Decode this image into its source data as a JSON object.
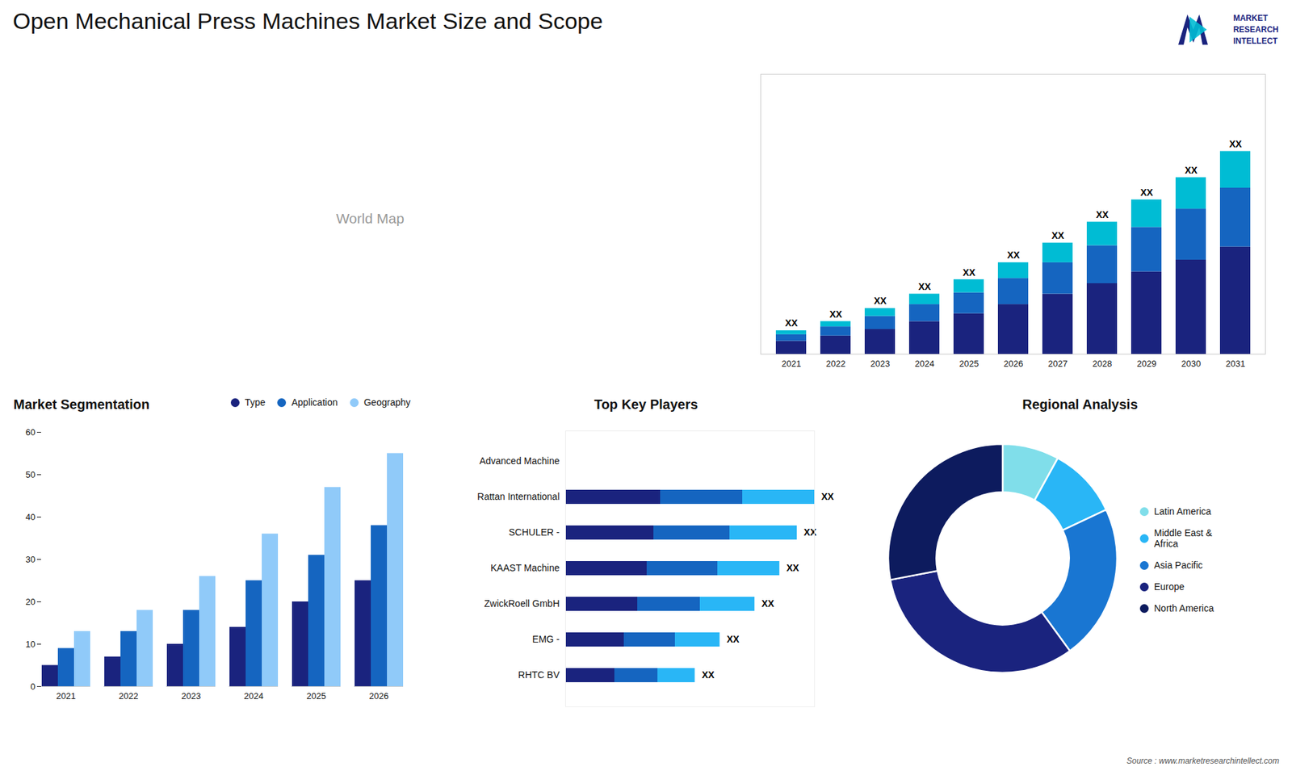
{
  "title": "Open Mechanical Press Machines Market Size and Scope",
  "annotations": [
    "MARKET",
    "RESEARCH",
    "INTELLECT",
    "Source : www.marketresearchintellect.com"
  ],
  "chart_data": [
    {
      "type": "map",
      "annotations": [
        "World Map"
      ]
    },
    {
      "type": "bar",
      "stacked": true,
      "categories": [
        "2021",
        "2022",
        "2023",
        "2024",
        "2025",
        "2026",
        "2027",
        "2028",
        "2029",
        "2030",
        "2031"
      ],
      "series": [
        {
          "color": "#1a237e",
          "values": [
            1.0,
            1.4,
            1.9,
            2.5,
            3.1,
            3.8,
            4.6,
            5.4,
            6.3,
            7.2,
            8.2
          ]
        },
        {
          "color": "#1565c0",
          "values": [
            0.5,
            0.7,
            1.0,
            1.3,
            1.6,
            2.0,
            2.4,
            2.9,
            3.4,
            3.9,
            4.5
          ]
        },
        {
          "color": "#00bcd4",
          "values": [
            0.3,
            0.4,
            0.6,
            0.8,
            1.0,
            1.2,
            1.5,
            1.8,
            2.1,
            2.4,
            2.8
          ]
        }
      ],
      "ylim": [
        0,
        21.39
      ],
      "tick_labels": "x",
      "annotations": [
        "XX",
        "XX",
        "XX",
        "XX",
        "XX",
        "XX",
        "XX",
        "XX",
        "XX",
        "XX",
        "XX"
      ]
    },
    {
      "type": "bar",
      "title": "Market Segmentation",
      "categories": [
        "2021",
        "2022",
        "2023",
        "2024",
        "2025",
        "2026"
      ],
      "series": [
        {
          "name": "Type",
          "color": "#1a237e",
          "values": [
            5,
            7,
            10,
            14,
            20,
            25
          ]
        },
        {
          "name": "Application",
          "color": "#1565c0",
          "values": [
            9,
            13,
            18,
            25,
            31,
            38
          ]
        },
        {
          "name": "Geography",
          "color": "#90caf9",
          "values": [
            13,
            18,
            26,
            36,
            47,
            55
          ]
        }
      ],
      "ylim": [
        0,
        60
      ],
      "yticks": [
        0,
        10,
        20,
        30,
        40,
        50,
        60
      ],
      "legend": "upper right"
    },
    {
      "type": "bar",
      "orientation": "horizontal",
      "title": "Top Key Players",
      "categories": [
        "Advanced Machine",
        "Rattan International",
        "SCHULER -",
        "KAAST Machine",
        "ZwickRoell GmbH",
        "EMG -",
        "RHTC BV"
      ],
      "values": [
        0,
        1.0,
        0.93,
        0.86,
        0.76,
        0.62,
        0.52
      ],
      "value_labels": [
        null,
        "XX",
        "XX",
        "XX",
        "XX",
        "XX",
        "XX"
      ],
      "colors": [
        "#1a237e",
        "#1565c0",
        "#29b6f6"
      ],
      "xlim": [
        0,
        1
      ],
      "tick_labels": "y"
    },
    {
      "type": "pie",
      "title": "Regional Analysis",
      "categories": [
        "Latin America",
        "Middle East &\nAfrica",
        "Asia Pacific",
        "Europe",
        "North America"
      ],
      "values": [
        8,
        10,
        22,
        32,
        28
      ],
      "colors": [
        "#80deea",
        "#29b6f6",
        "#1976d2",
        "#1a237e",
        "#0d1b5e"
      ],
      "legend": "right"
    }
  ]
}
